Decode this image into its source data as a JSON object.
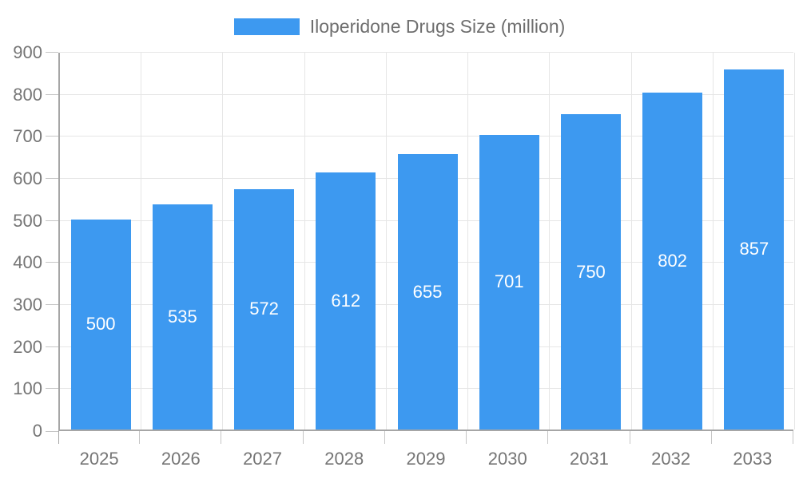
{
  "chart_data": {
    "type": "bar",
    "title": "Iloperidone Drugs Size (million)",
    "categories": [
      "2025",
      "2026",
      "2027",
      "2028",
      "2029",
      "2030",
      "2031",
      "2032",
      "2033"
    ],
    "series": [
      {
        "name": "Iloperidone Drugs Size (million)",
        "values": [
          500,
          535,
          572,
          612,
          655,
          701,
          750,
          802,
          857
        ]
      }
    ],
    "xlabel": "",
    "ylabel": "",
    "ylim": [
      0,
      900
    ],
    "ytick_step": 100,
    "ytick_labels": [
      "0",
      "100",
      "200",
      "300",
      "400",
      "500",
      "600",
      "700",
      "800",
      "900"
    ],
    "grid": true,
    "legend_position": "top-center",
    "bar_labels_inside": true,
    "colors": {
      "bar": "#3d99f0",
      "bar_label": "#ffffff",
      "axis_text": "#757575",
      "legend_text": "#6e6e6e",
      "gridline": "#e6e6e6",
      "axis_line": "#a6a6a6",
      "tick": "#c6c6c6",
      "background": "#ffffff"
    }
  }
}
